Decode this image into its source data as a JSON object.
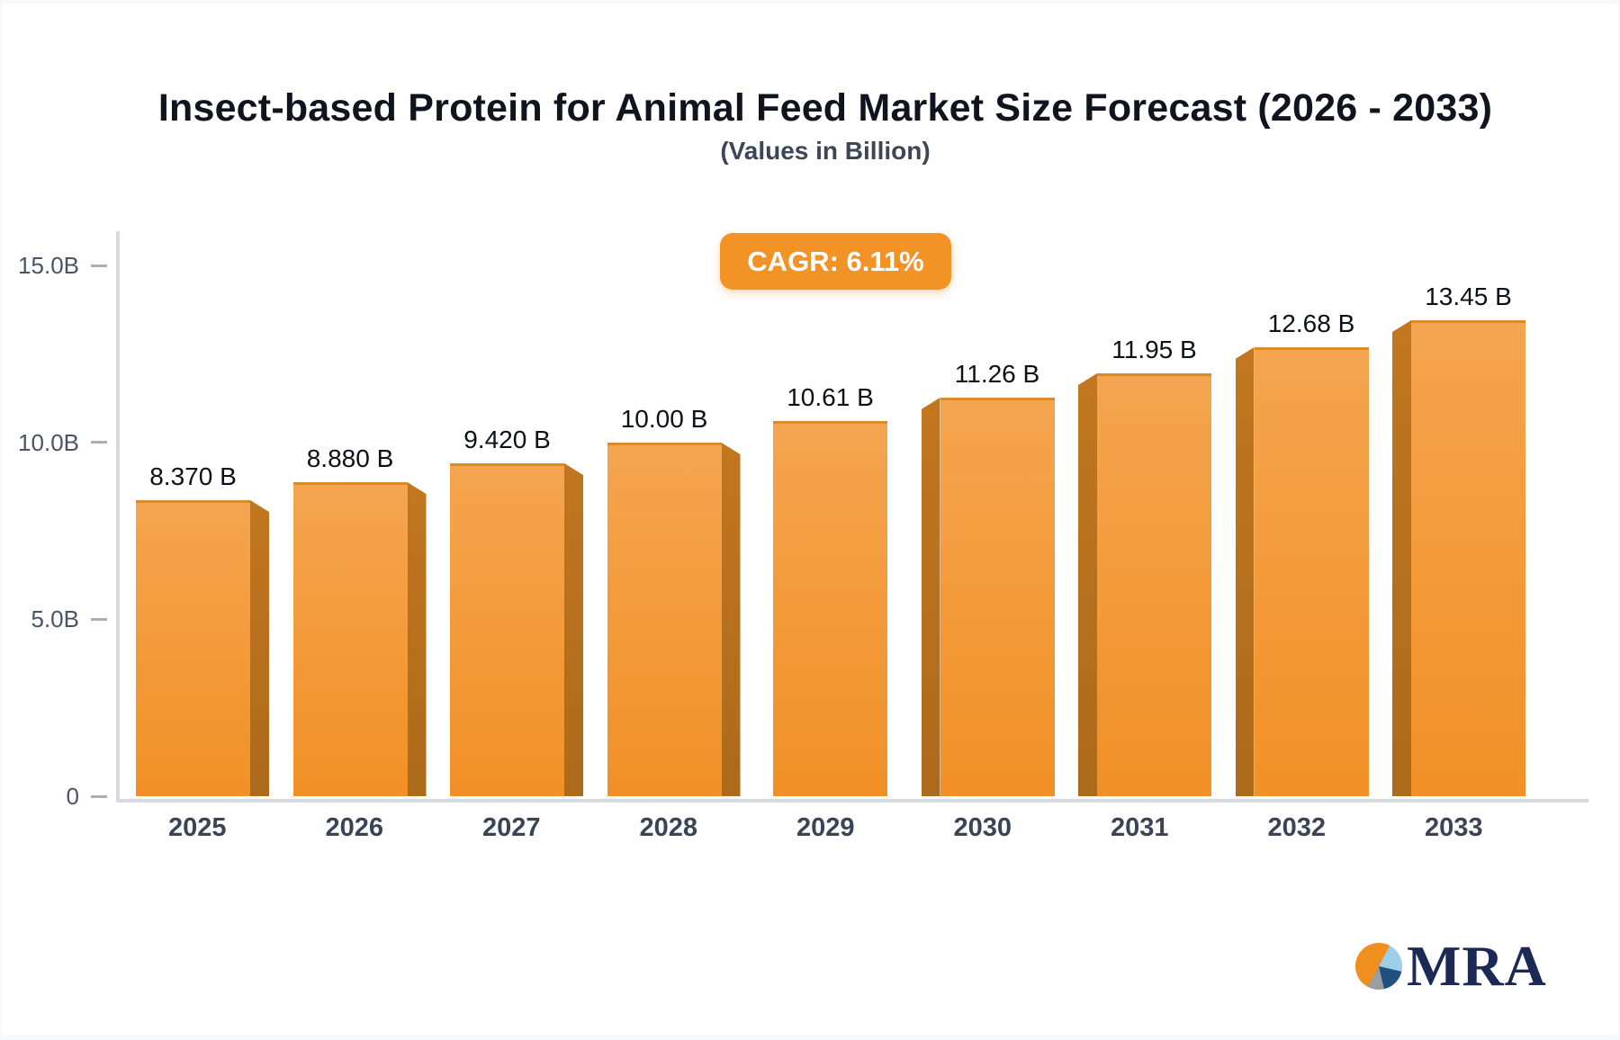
{
  "header": {
    "title": "Insect-based Protein for Animal Feed Market Size Forecast (2026 - 2033)",
    "subtitle": "(Values in Billion)"
  },
  "badge": {
    "label": "CAGR: 6.11%",
    "bg": "#F39325",
    "text_color": "#FFFFFF"
  },
  "chart_data": {
    "type": "bar",
    "title": "Insect-based Protein for Animal Feed Market Size Forecast (2026 - 2033)",
    "subtitle": "(Values in Billion)",
    "cagr_percent": 6.11,
    "categories": [
      "2025",
      "2026",
      "2027",
      "2028",
      "2029",
      "2030",
      "2031",
      "2032",
      "2033"
    ],
    "values": [
      8.37,
      8.88,
      9.42,
      10.0,
      10.61,
      11.26,
      11.95,
      12.68,
      13.45
    ],
    "bar_labels": [
      "8.370 B",
      "8.880 B",
      "9.420 B",
      "10.00 B",
      "10.61 B",
      "11.26 B",
      "11.95 B",
      "12.68 B",
      "13.45 B"
    ],
    "xlabel": "",
    "ylabel": "",
    "ylim": [
      0,
      15
    ],
    "yticks": [
      {
        "value": 15,
        "label": "15.0B"
      },
      {
        "value": 10,
        "label": "10.0B"
      },
      {
        "value": 5,
        "label": "5.0B"
      },
      {
        "value": 0,
        "label": "0"
      }
    ],
    "grid": false,
    "legend": false,
    "colors": {
      "bar_gradient_top": "#F4A54F",
      "bar_gradient_bottom": "#F29026",
      "bar_top_border": "#DB8A28",
      "bar_side_top": "#C2761F",
      "bar_side_bottom": "#AD6A1B",
      "axis_line": "#D8D9DE",
      "tick": "#A9AEB9",
      "ytick_text": "#4A5469",
      "xtick_text": "#394456",
      "value_text": "#0D1016"
    }
  },
  "logo": {
    "text": "MRA",
    "colors": {
      "text": "#1B2955",
      "pie_orange": "#EF8F1E",
      "pie_light_blue": "#9ECFEA",
      "pie_navy": "#1E5080",
      "pie_gray": "#9D9DA1"
    }
  }
}
